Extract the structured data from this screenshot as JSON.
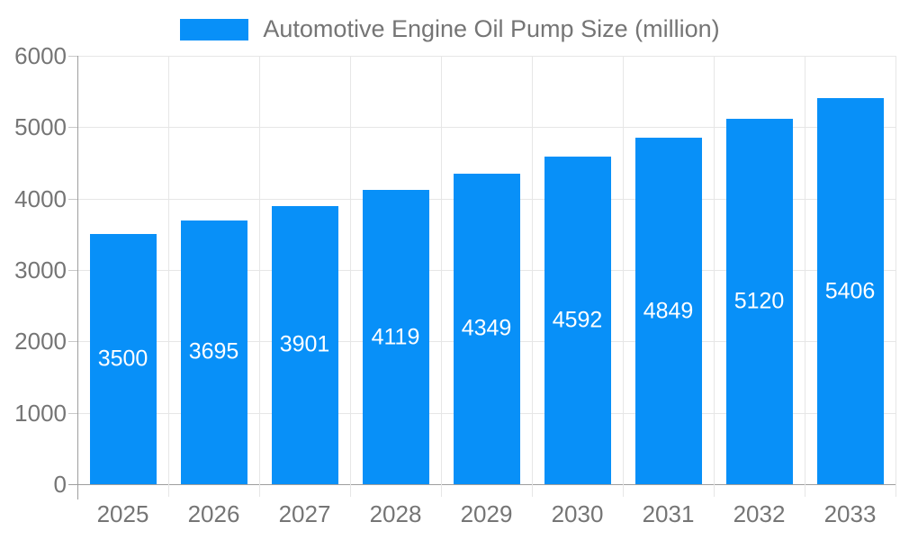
{
  "chart_data": {
    "type": "bar",
    "title": "Automotive Engine Oil Pump Size (million)",
    "categories": [
      "2025",
      "2026",
      "2027",
      "2028",
      "2029",
      "2030",
      "2031",
      "2032",
      "2033"
    ],
    "series": [
      {
        "name": "Automotive Engine Oil Pump Size (million)",
        "values": [
          3500,
          3695,
          3901,
          4119,
          4349,
          4592,
          4849,
          5120,
          5406
        ]
      }
    ],
    "bar_labels": [
      "3500",
      "3695",
      "3901",
      "4119",
      "4349",
      "4592",
      "4849",
      "5120",
      "5406"
    ],
    "xlabel": "",
    "ylabel": "",
    "ylim": [
      0,
      6000
    ],
    "yticks": [
      0,
      1000,
      2000,
      3000,
      4000,
      5000,
      6000
    ],
    "grid": true,
    "legend_position": "top",
    "colors": {
      "bar": "#0890f8",
      "bar_label": "#ffffff",
      "axis_text": "#757575",
      "gridline": "#e6e6e6",
      "axis_line": "#9e9e9e",
      "background": "#ffffff"
    }
  }
}
